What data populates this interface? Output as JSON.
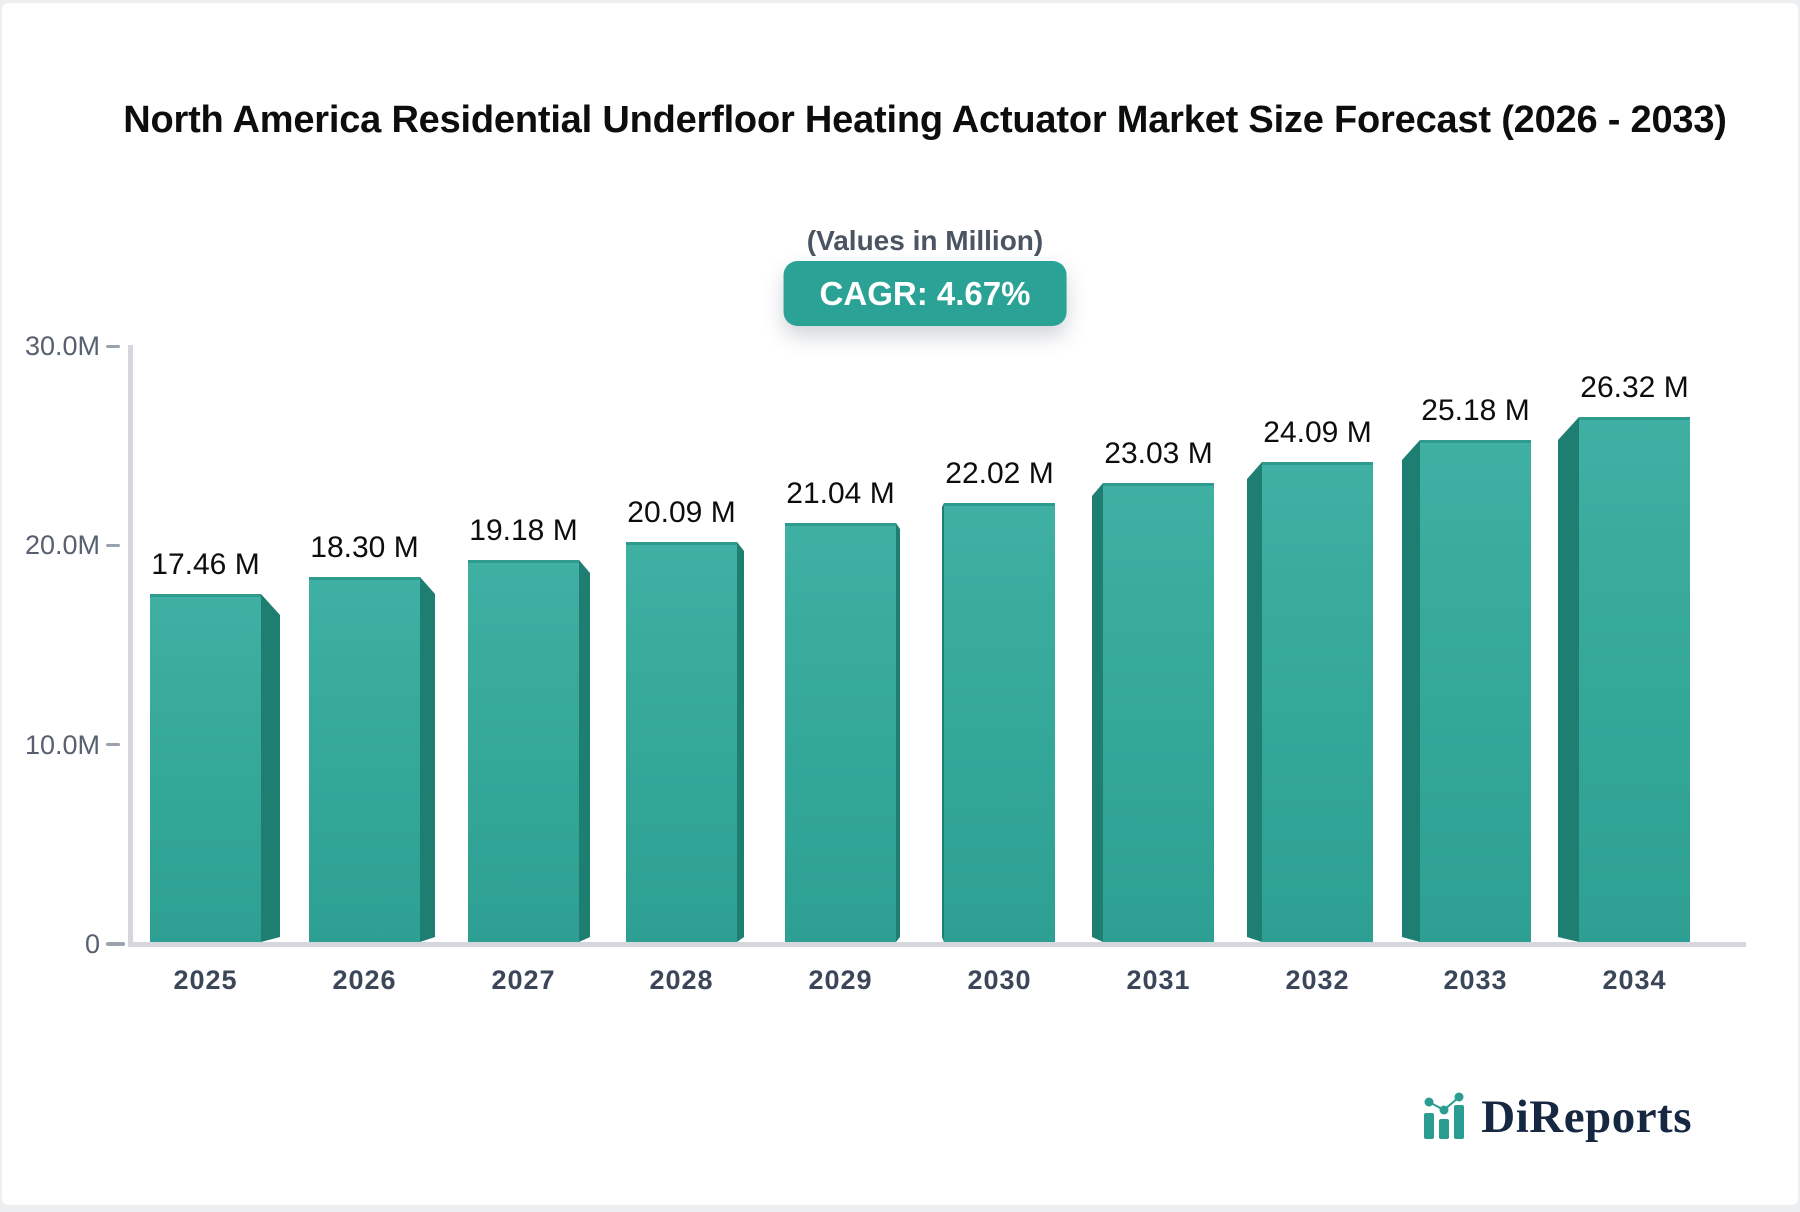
{
  "header": {
    "title": "North America Residential Underfloor Heating Actuator Market Size Forecast (2026 - 2033)",
    "subtitle": "(Values in Million)",
    "cagr_badge": "CAGR: 4.67%"
  },
  "chart_data": {
    "type": "bar",
    "title": "North America Residential Underfloor Heating Actuator Market Size Forecast (2026 - 2033)",
    "subtitle": "(Values in Million)",
    "cagr": "4.67%",
    "unit": "Million",
    "categories": [
      "2025",
      "2026",
      "2027",
      "2028",
      "2029",
      "2030",
      "2031",
      "2032",
      "2033",
      "2034"
    ],
    "values": [
      17.46,
      18.3,
      19.18,
      20.09,
      21.04,
      22.02,
      23.03,
      24.09,
      25.18,
      26.32
    ],
    "value_labels": [
      "17.46 M",
      "18.30 M",
      "19.18 M",
      "20.09 M",
      "21.04 M",
      "22.02 M",
      "23.03 M",
      "24.09 M",
      "25.18 M",
      "26.32 M"
    ],
    "yticks": [
      {
        "label": "30.0M",
        "value": 30
      },
      {
        "label": "20.0M",
        "value": 20
      },
      {
        "label": "10.0M",
        "value": 10
      },
      {
        "label": "0",
        "value": 0
      }
    ],
    "ylim": [
      0,
      30
    ],
    "xlabel": "",
    "ylabel": "",
    "grid": false,
    "legend": false,
    "colors": {
      "bar_front_top": "#3fb0a3",
      "bar_front_bottom": "#2da093",
      "bar_side": "#1f7e72",
      "accent_badge": "#2aa396",
      "axis": "#d5d7dc"
    }
  },
  "footer": {
    "logo_text": "DiReports"
  }
}
